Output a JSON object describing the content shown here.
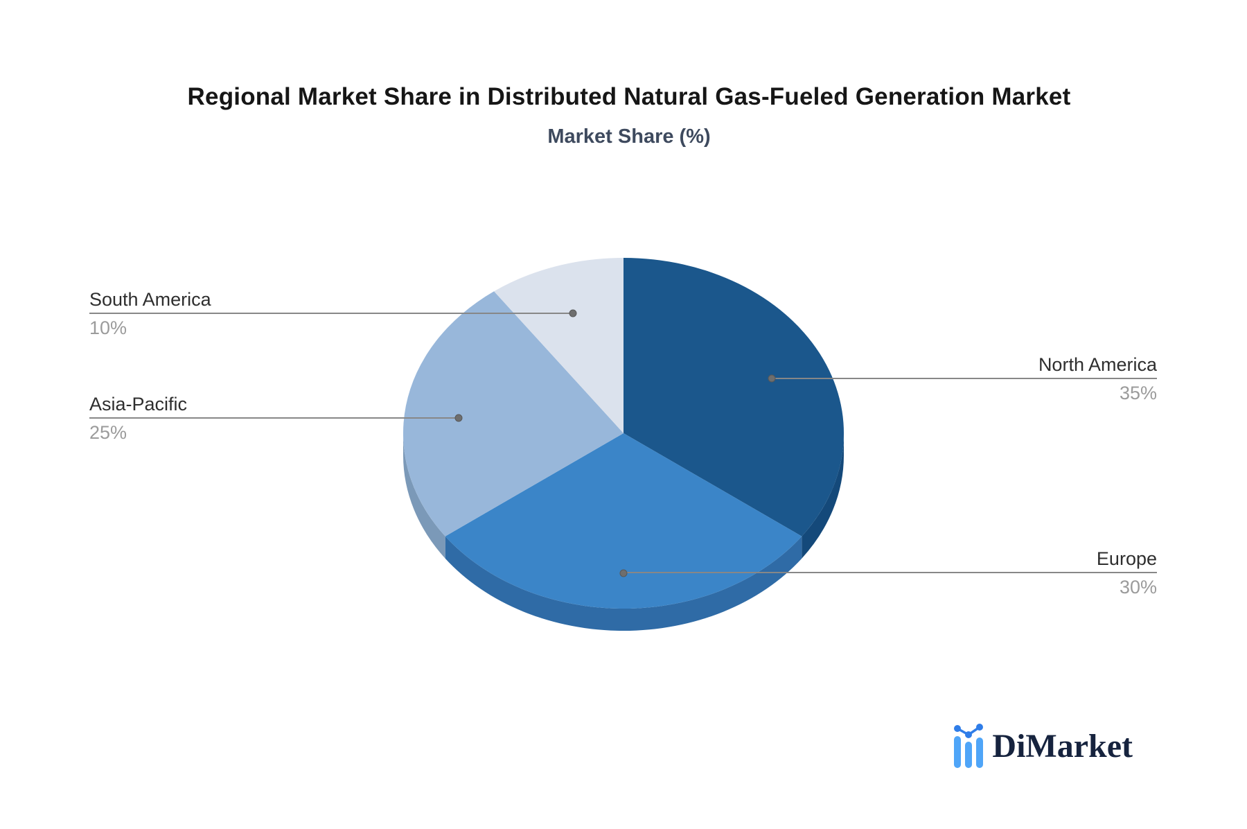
{
  "chart_data": {
    "type": "pie",
    "style": "3d",
    "title": "Regional Market Share in Distributed Natural Gas-Fueled Generation Market",
    "subtitle": "Market Share (%)",
    "unit": "%",
    "start_angle": "12-oclock",
    "direction": "clockwise",
    "legend_position": "callout-labels",
    "slices": [
      {
        "label": "North America",
        "value": 35,
        "value_text": "35%",
        "color": "#1B578C",
        "side_color": "#14497A",
        "label_side": "right"
      },
      {
        "label": "Europe",
        "value": 30,
        "value_text": "30%",
        "color": "#3B85C8",
        "side_color": "#2F6BA6",
        "label_side": "right"
      },
      {
        "label": "Asia-Pacific",
        "value": 25,
        "value_text": "25%",
        "color": "#98B7DA",
        "side_color": "#7B99B8",
        "label_side": "left"
      },
      {
        "label": "South America",
        "value": 10,
        "value_text": "10%",
        "color": "#DBE2ED",
        "side_color": "#C4CEDD",
        "label_side": "left"
      }
    ],
    "callout_line_color": "#878787",
    "label_text_color": "#2e2e2e",
    "value_text_color": "#9b9b9b"
  },
  "watermark": {
    "text": "DiMarket",
    "icon": "bar-line-chart-icon",
    "text_color": "#16233e",
    "bar_color": "#4FA5F8",
    "accent_color": "#2F7DE8"
  }
}
